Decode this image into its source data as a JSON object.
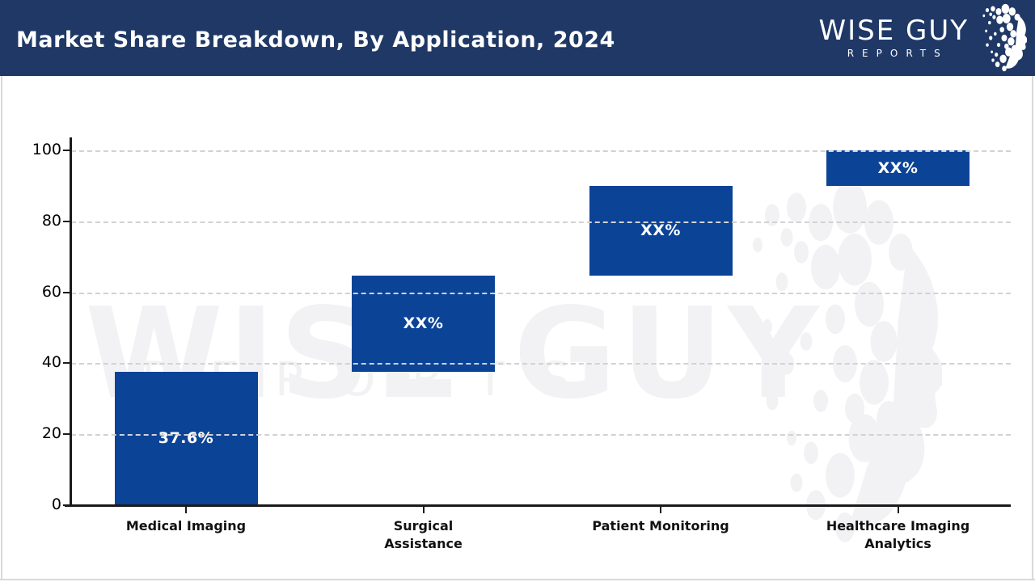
{
  "header": {
    "title": "Market Share Breakdown, By Application, 2024"
  },
  "logo": {
    "wordmark": "WISE GUY",
    "subtext": "REPORTS"
  },
  "watermark": {
    "wordmark": "WISE GUY",
    "subtext": "REPORTS"
  },
  "colors": {
    "header_bg": "#1f3866",
    "bar": "#0b4397",
    "bar_label": "#ffffff",
    "grid": "#d2d2d2",
    "axis": "#1a1a1a"
  },
  "chart_data": {
    "type": "bar",
    "subtype": "waterfall",
    "title": "Market Share Breakdown, By Application, 2024",
    "categories": [
      "Medical Imaging",
      "Surgical Assistance",
      "Patient Monitoring",
      "Healthcare Imaging Analytics"
    ],
    "category_lines": [
      [
        "Medical Imaging"
      ],
      [
        "Surgical",
        "Assistance"
      ],
      [
        "Patient Monitoring"
      ],
      [
        "Healthcare Imaging",
        "Analytics"
      ]
    ],
    "segments": [
      {
        "category": "Medical Imaging",
        "start": 0,
        "end": 37.6,
        "label": "37.6%"
      },
      {
        "category": "Surgical Assistance",
        "start": 37.6,
        "end": 64.8,
        "label": "XX%"
      },
      {
        "category": "Patient Monitoring",
        "start": 64.8,
        "end": 90,
        "label": "XX%"
      },
      {
        "category": "Healthcare Imaging Analytics",
        "start": 90,
        "end": 100,
        "label": "XX%"
      }
    ],
    "yticks": [
      0,
      20,
      40,
      60,
      80,
      100
    ],
    "ylim": [
      0,
      100
    ],
    "xlabel": "",
    "ylabel": "",
    "grid": "dashed-horizontal",
    "legend": "none",
    "bar_color": "#0b4397",
    "label_color": "#ffffff"
  }
}
